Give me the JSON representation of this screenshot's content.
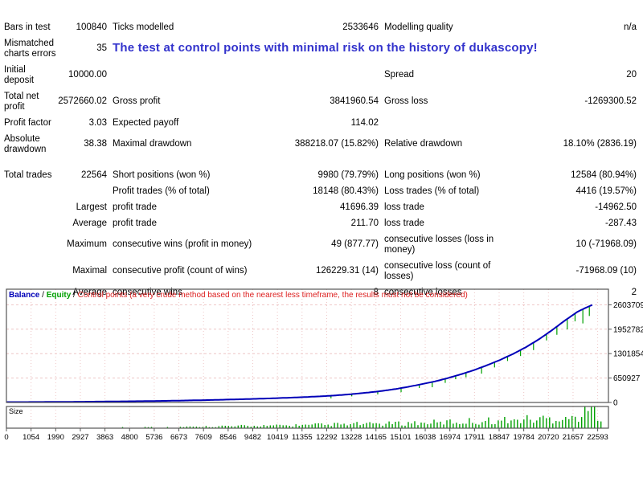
{
  "report": {
    "rows": [
      {
        "cells": [
          "Bars in test",
          "100840",
          "Ticks modelled",
          "2533646",
          "Modelling quality",
          "n/a"
        ]
      },
      {
        "title": "The test at control points with minimal risk on the history of dukascopy!",
        "cells": [
          "Mismatched charts errors",
          "35"
        ]
      },
      {
        "cells": [
          "Initial deposit",
          "10000.00",
          "",
          "",
          "Spread",
          "20"
        ]
      },
      {
        "cells": [
          "Total net profit",
          "2572660.02",
          "Gross profit",
          "3841960.54",
          "Gross loss",
          "-1269300.52"
        ]
      },
      {
        "cells": [
          "Profit factor",
          "3.03",
          "Expected payoff",
          "114.02",
          "",
          ""
        ]
      },
      {
        "cells": [
          "Absolute drawdown",
          "38.38",
          "Maximal drawdown",
          "388218.07 (15.82%)",
          "Relative drawdown",
          "18.10% (2836.19)"
        ]
      },
      {
        "spacer": true
      },
      {
        "cells": [
          "Total trades",
          "22564",
          "Short positions (won %)",
          "9980 (79.79%)",
          "Long positions (won %)",
          "12584 (80.94%)"
        ]
      },
      {
        "cells": [
          "",
          "",
          "Profit trades (% of total)",
          "18148 (80.43%)",
          "Loss trades (% of total)",
          "4416 (19.57%)"
        ]
      },
      {
        "cells": [
          "",
          "Largest",
          "profit trade",
          "41696.39",
          "loss trade",
          "-14962.50"
        ]
      },
      {
        "cells": [
          "",
          "Average",
          "profit trade",
          "211.70",
          "loss trade",
          "-287.43"
        ]
      },
      {
        "cells": [
          "",
          "Maximum",
          "consecutive wins (profit in money)",
          "49 (877.77)",
          "consecutive losses (loss in money)",
          "10 (-71968.09)"
        ]
      },
      {
        "cells": [
          "",
          "Maximal",
          "consecutive profit (count of wins)",
          "126229.31 (14)",
          "consecutive loss (count of losses)",
          "-71968.09 (10)"
        ]
      },
      {
        "cells": [
          "",
          "Average",
          "consecutive wins",
          "8",
          "consecutive losses",
          "2"
        ]
      }
    ]
  },
  "colors": {
    "headline_blue": "#3333cc",
    "balance_line": "#0000b8",
    "equity_green": "#00a000",
    "note_red": "#dd2222",
    "grid_pink": "#eec6c6",
    "frame_gray": "#555555",
    "text_black": "#000000"
  },
  "chart_data": {
    "type": "line",
    "title": "Strategy Tester balance / equity curve with trade size histogram",
    "legend": {
      "balance_label": "Balance",
      "equity_label": "Equity",
      "separator": " / ",
      "note": "Control points (a very crude method based on the nearest less timeframe, the results must not be considered)"
    },
    "x_tick_labels": [
      "0",
      "1054",
      "1990",
      "2927",
      "3863",
      "4800",
      "5736",
      "6673",
      "7609",
      "8546",
      "9482",
      "10419",
      "11355",
      "12292",
      "13228",
      "14165",
      "15101",
      "16038",
      "16974",
      "17911",
      "18847",
      "19784",
      "20720",
      "21657",
      "22593"
    ],
    "y_ticks": [
      0,
      650927,
      1301854,
      1952782,
      2603709
    ],
    "x_max": 22593,
    "y_label_max": 2603709,
    "balance_points": [
      [
        0,
        10000
      ],
      [
        1000,
        12000
      ],
      [
        2000,
        16000
      ],
      [
        3000,
        20000
      ],
      [
        4000,
        26000
      ],
      [
        5000,
        33000
      ],
      [
        6000,
        42000
      ],
      [
        7000,
        54000
      ],
      [
        8000,
        68000
      ],
      [
        9000,
        85000
      ],
      [
        10000,
        105000
      ],
      [
        11000,
        130000
      ],
      [
        12000,
        160000
      ],
      [
        12500,
        180000
      ],
      [
        13000,
        205000
      ],
      [
        13500,
        235000
      ],
      [
        14000,
        270000
      ],
      [
        14500,
        310000
      ],
      [
        15000,
        360000
      ],
      [
        15500,
        420000
      ],
      [
        16000,
        490000
      ],
      [
        16500,
        560000
      ],
      [
        17000,
        650000
      ],
      [
        17500,
        750000
      ],
      [
        18000,
        860000
      ],
      [
        18500,
        990000
      ],
      [
        19000,
        1130000
      ],
      [
        19500,
        1290000
      ],
      [
        20000,
        1470000
      ],
      [
        20500,
        1680000
      ],
      [
        21000,
        1920000
      ],
      [
        21500,
        2180000
      ],
      [
        22000,
        2420000
      ],
      [
        22300,
        2520000
      ],
      [
        22564,
        2600000
      ]
    ],
    "equity_dips": [
      [
        12500,
        70000
      ],
      [
        13300,
        60000
      ],
      [
        14300,
        80000
      ],
      [
        15200,
        110000
      ],
      [
        15900,
        90000
      ],
      [
        16400,
        140000
      ],
      [
        16900,
        110000
      ],
      [
        17300,
        90000
      ],
      [
        17700,
        120000
      ],
      [
        18300,
        170000
      ],
      [
        18800,
        140000
      ],
      [
        19300,
        120000
      ],
      [
        19800,
        160000
      ],
      [
        20300,
        200000
      ],
      [
        20800,
        170000
      ],
      [
        21200,
        220000
      ],
      [
        21600,
        280000
      ],
      [
        21900,
        210000
      ],
      [
        22200,
        380000
      ],
      [
        22450,
        260000
      ]
    ],
    "size_histogram": {
      "label": "Size",
      "values": [
        0,
        0,
        0,
        0,
        0,
        0,
        0,
        0,
        0,
        0,
        2,
        0,
        3,
        0,
        2,
        4,
        2,
        5,
        3,
        6,
        4,
        7,
        5,
        9,
        6,
        10,
        7,
        12,
        8,
        13,
        9,
        15,
        11,
        16,
        12,
        18,
        13,
        20,
        15,
        22,
        16,
        24,
        18,
        26,
        20,
        28,
        22,
        30,
        24,
        33,
        26,
        36,
        28,
        40,
        31,
        44,
        34,
        48,
        38,
        55,
        42,
        62,
        95,
        52
      ]
    }
  }
}
